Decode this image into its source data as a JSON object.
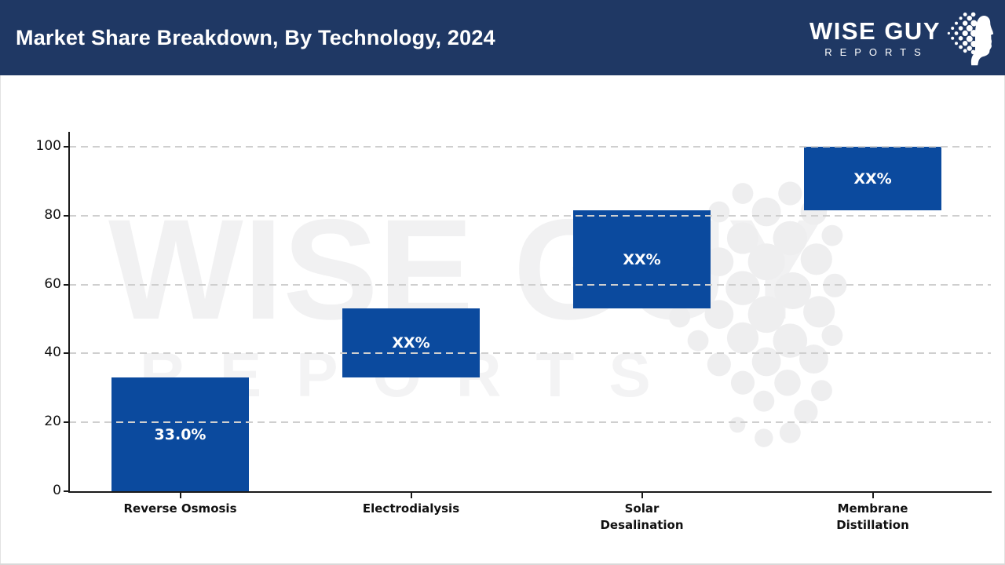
{
  "header": {
    "title": "Market Share Breakdown, By Technology, 2024",
    "logo": {
      "name_line": "WISE GUY",
      "sub_line": "REPORTS"
    }
  },
  "watermark": {
    "line1": "WISE GUY",
    "line2": "REPORTS"
  },
  "colors": {
    "header_bg": "#1f3864",
    "bar_fill": "#0b4a9e",
    "bar_label_text": "#ffffff",
    "gridline": "#cfcfcf",
    "axis": "#1a1a1a",
    "watermark": "#f1f1f2"
  },
  "chart_data": {
    "type": "bar",
    "variant": "waterfall-floating-bars",
    "title": "Market Share Breakdown, By Technology, 2024",
    "categories": [
      "Reverse Osmosis",
      "Electrodialysis",
      "Solar Desalination",
      "Membrane Distillation"
    ],
    "series": [
      {
        "name": "Market Share",
        "ranges": [
          [
            0,
            33.0
          ],
          [
            33.0,
            53.0
          ],
          [
            53.0,
            81.5
          ],
          [
            81.5,
            100.0
          ]
        ],
        "segment_estimates": [
          33.0,
          20.0,
          28.5,
          18.5
        ],
        "labels": [
          "33.0%",
          "XX%",
          "XX%",
          "XX%"
        ]
      }
    ],
    "xlabel": "",
    "ylabel": "",
    "yticks": [
      0,
      20,
      40,
      60,
      80,
      100
    ],
    "ylim": [
      0,
      105
    ],
    "grid": "dashed-horizontal-over-bars",
    "legend": "none"
  }
}
